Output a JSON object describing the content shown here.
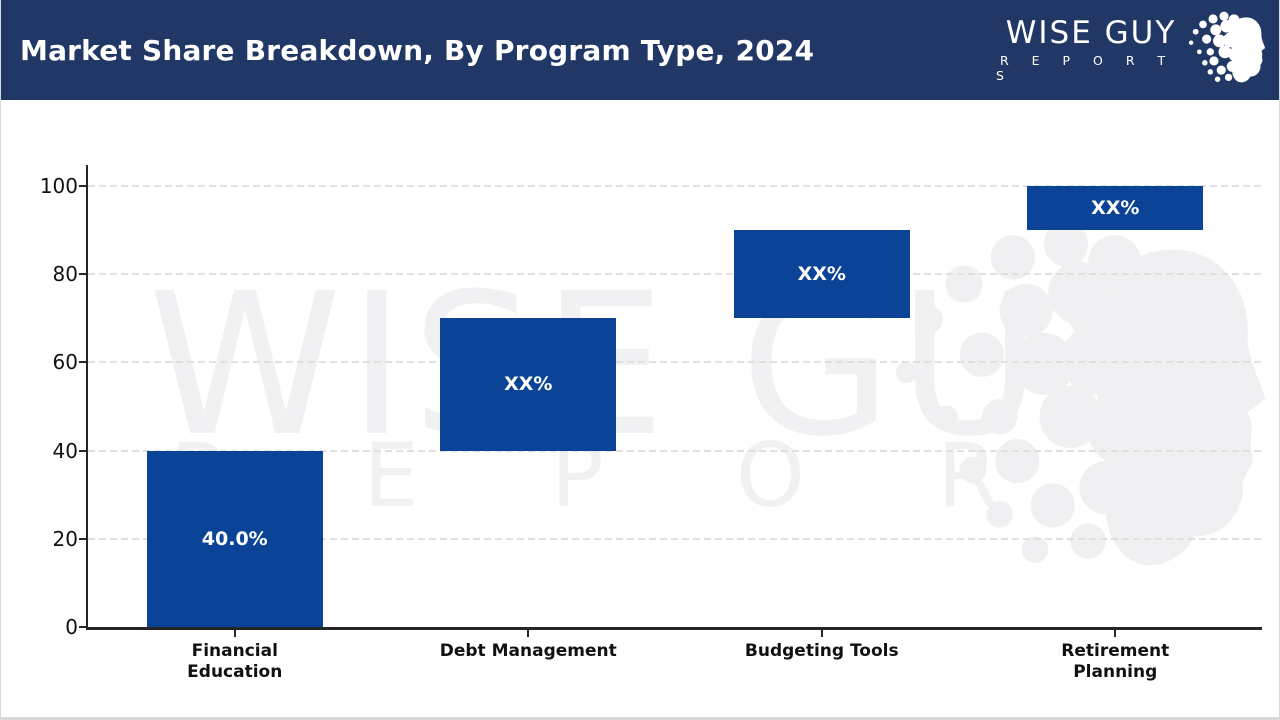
{
  "header": {
    "title": "Market Share Breakdown, By Program Type, 2024",
    "bg_color": "#213765",
    "logo": {
      "line1": "WISE GUY",
      "line2": "R E P O R T S"
    }
  },
  "watermark": {
    "line1": "WISE GUY",
    "line2": "R E P O R T S"
  },
  "chart_data": {
    "type": "bar",
    "subtype": "floating-waterfall",
    "title": "Market Share Breakdown, By Program Type, 2024",
    "categories": [
      "Financial Education",
      "Debt Management",
      "Budgeting Tools",
      "Retirement Planning"
    ],
    "category_lines": [
      [
        "Financial",
        "Education"
      ],
      [
        "Debt Management"
      ],
      [
        "Budgeting Tools"
      ],
      [
        "Retirement",
        "Planning"
      ]
    ],
    "segments": [
      {
        "category": "Financial Education",
        "start": 0,
        "end": 40,
        "label": "40.0%"
      },
      {
        "category": "Debt Management",
        "start": 40,
        "end": 70,
        "label": "XX%"
      },
      {
        "category": "Budgeting Tools",
        "start": 70,
        "end": 90,
        "label": "XX%"
      },
      {
        "category": "Retirement Planning",
        "start": 90,
        "end": 100,
        "label": "XX%"
      }
    ],
    "ylim": [
      0,
      100
    ],
    "yticks": [
      0,
      20,
      40,
      60,
      80,
      100
    ],
    "xlabel": "",
    "ylabel": "",
    "bar_color": "#0B4496",
    "bar_label_color": "#ffffff",
    "grid": {
      "axis": "y",
      "style": "dashed",
      "color": "#e0e0e0"
    },
    "legend": "none"
  }
}
